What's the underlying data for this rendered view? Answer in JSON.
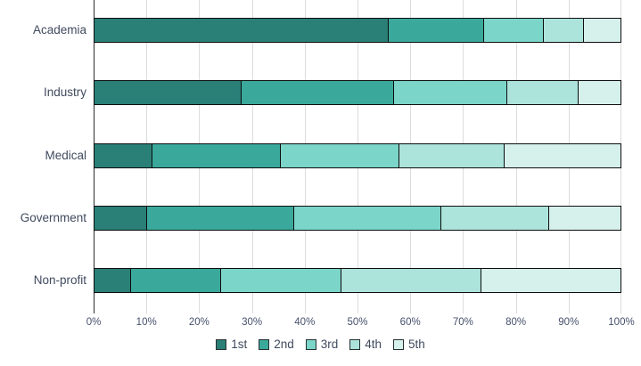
{
  "chart_data": {
    "type": "bar",
    "orientation": "horizontal",
    "stacked": true,
    "percent_stacked": true,
    "title": "",
    "xlabel": "",
    "ylabel": "",
    "xlim": [
      0,
      100
    ],
    "grid": "vertical",
    "legend_position": "bottom",
    "categories": [
      "Academia",
      "Industry",
      "Medical",
      "Government",
      "Non-profit"
    ],
    "series": [
      {
        "name": "1st",
        "color": "#2a7f77",
        "values": [
          56,
          28,
          11,
          10,
          7
        ]
      },
      {
        "name": "2nd",
        "color": "#3aa99c",
        "values": [
          18,
          29,
          24.5,
          28,
          17
        ]
      },
      {
        "name": "3rd",
        "color": "#7bd5c9",
        "values": [
          11.5,
          21.5,
          22.5,
          28,
          23
        ]
      },
      {
        "name": "4th",
        "color": "#ace3db",
        "values": [
          7.5,
          13.5,
          20,
          20.5,
          26.5
        ]
      },
      {
        "name": "5th",
        "color": "#d6f0ec",
        "values": [
          7,
          8,
          22,
          13.5,
          26.5
        ]
      }
    ],
    "x_ticks": [
      "0%",
      "10%",
      "20%",
      "30%",
      "40%",
      "50%",
      "60%",
      "70%",
      "80%",
      "90%",
      "100%"
    ]
  },
  "colors": {
    "text": "#404a5f",
    "gridline": "#dcdcdc",
    "axis_line": "#2b2b2b",
    "bar_border": "#0d0d0d",
    "background": "#ffffff"
  }
}
